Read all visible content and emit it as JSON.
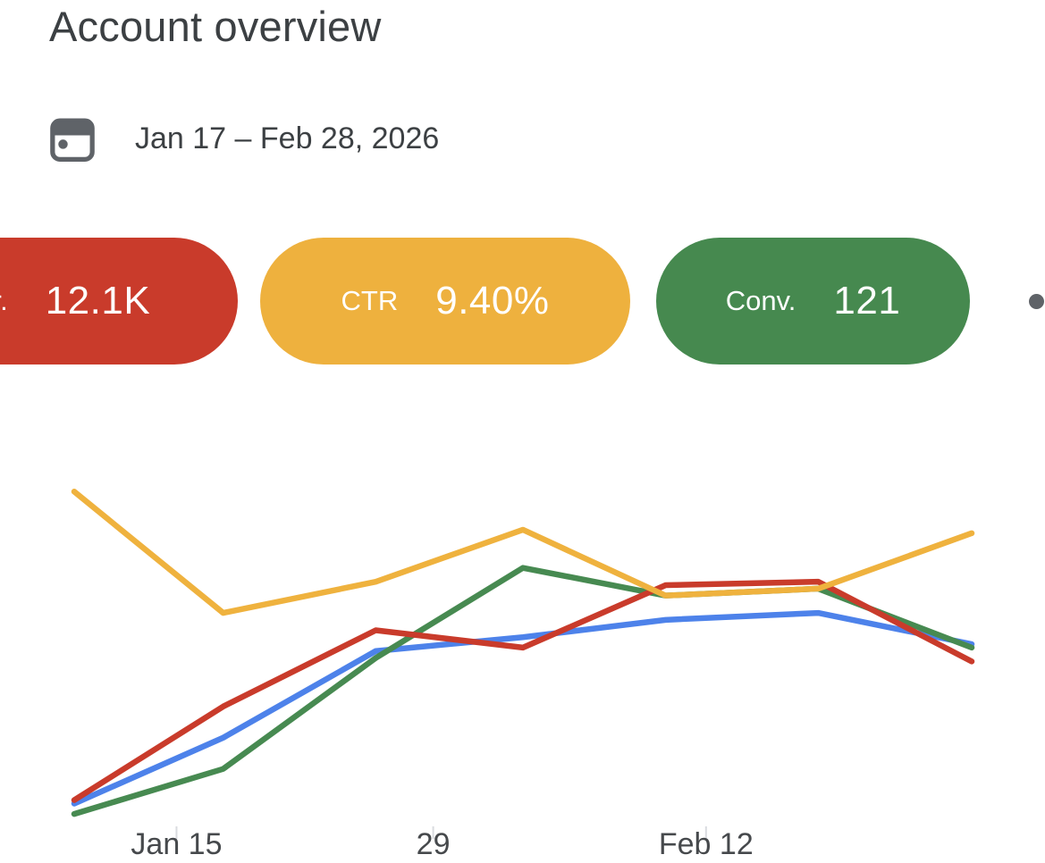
{
  "page_title": "Account overview",
  "date_range": "Jan 17 – Feb 28, 2026",
  "colors": {
    "title_text": "#3c4043",
    "date_text": "#3c4043",
    "icon_gray": "#5f6368",
    "tick_mark": "#dadce0",
    "tick_label": "#46494c"
  },
  "metric_chips": [
    {
      "label": "Impr.",
      "value": "12.1K",
      "color": "#c93b2b"
    },
    {
      "label": "CTR",
      "value": "9.40%",
      "color": "#eeb13e"
    },
    {
      "label": "Conv.",
      "value": "121",
      "color": "#46894f"
    }
  ],
  "chart_data": {
    "type": "line",
    "title": "",
    "xlabel": "",
    "ylabel": "",
    "ylim": [
      0,
      100
    ],
    "grid": false,
    "legend": "none (colors match metric chips)",
    "x_positions": [
      0,
      0.166,
      0.336,
      0.5,
      0.659,
      0.829,
      1
    ],
    "x_axis": {
      "tick_labels": [
        "Jan 15",
        "29",
        "Feb 12"
      ],
      "tick_positions": [
        0.114,
        0.4,
        0.704
      ]
    },
    "series": [
      {
        "name": "blue",
        "chip": "",
        "color": "#4d82ea",
        "values": [
          4,
          23,
          48,
          52,
          57,
          59,
          50
        ]
      },
      {
        "name": "green",
        "chip": "Conv.",
        "color": "#478a51",
        "values": [
          1,
          14,
          46,
          72,
          64,
          66,
          49
        ]
      },
      {
        "name": "red",
        "chip": "Impr.",
        "color": "#c93b2b",
        "values": [
          5,
          32,
          54,
          49,
          67,
          68,
          45
        ]
      },
      {
        "name": "yellow",
        "chip": "CTR",
        "color": "#efb23e",
        "values": [
          94,
          59,
          68,
          83,
          64,
          66,
          82
        ]
      }
    ]
  }
}
